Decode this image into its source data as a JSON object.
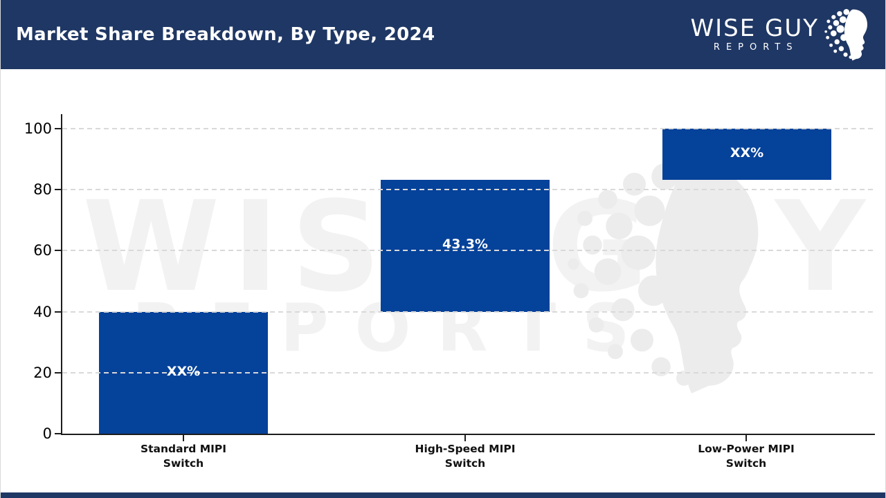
{
  "header": {
    "title": "Market Share Breakdown, By Type, 2024",
    "logo": {
      "line1": "WISE GUY",
      "line2": "REPORTS"
    }
  },
  "watermark": {
    "line1": "WISE GUY",
    "line2": "REPORTS"
  },
  "chart_data": {
    "type": "bar",
    "variant": "waterfall",
    "title": "Market Share Breakdown, By Type, 2024",
    "xlabel": "",
    "ylabel": "",
    "ylim": [
      0,
      100
    ],
    "yticks": [
      0,
      20,
      40,
      60,
      80,
      100
    ],
    "grid": "horizontal-dashed-over-bars",
    "legend": "none",
    "orientation": "vertical",
    "categories": [
      "Standard MIPI Switch",
      "High-Speed MIPI Switch",
      "Low-Power MIPI Switch"
    ],
    "bars": [
      {
        "category_line1": "Standard MIPI",
        "category_line2": "Switch",
        "start": 0,
        "end": 40,
        "value_label": "XX%"
      },
      {
        "category_line1": "High-Speed MIPI",
        "category_line2": "Switch",
        "start": 40,
        "end": 83.3,
        "value_label": "43.3%"
      },
      {
        "category_line1": "Low-Power MIPI",
        "category_line2": "Switch",
        "start": 83.3,
        "end": 100,
        "value_label": "XX%"
      }
    ]
  },
  "colors": {
    "header_bg": "#1f3764",
    "footer_bg": "#1f3764",
    "title_text": "#ffffff",
    "bar": "#05429a",
    "grid": "#d9d9d9",
    "axis": "#1c1c1c",
    "tick_text": "#000000",
    "watermark_text": "#f2f2f2",
    "watermark_face": "#ececec"
  }
}
